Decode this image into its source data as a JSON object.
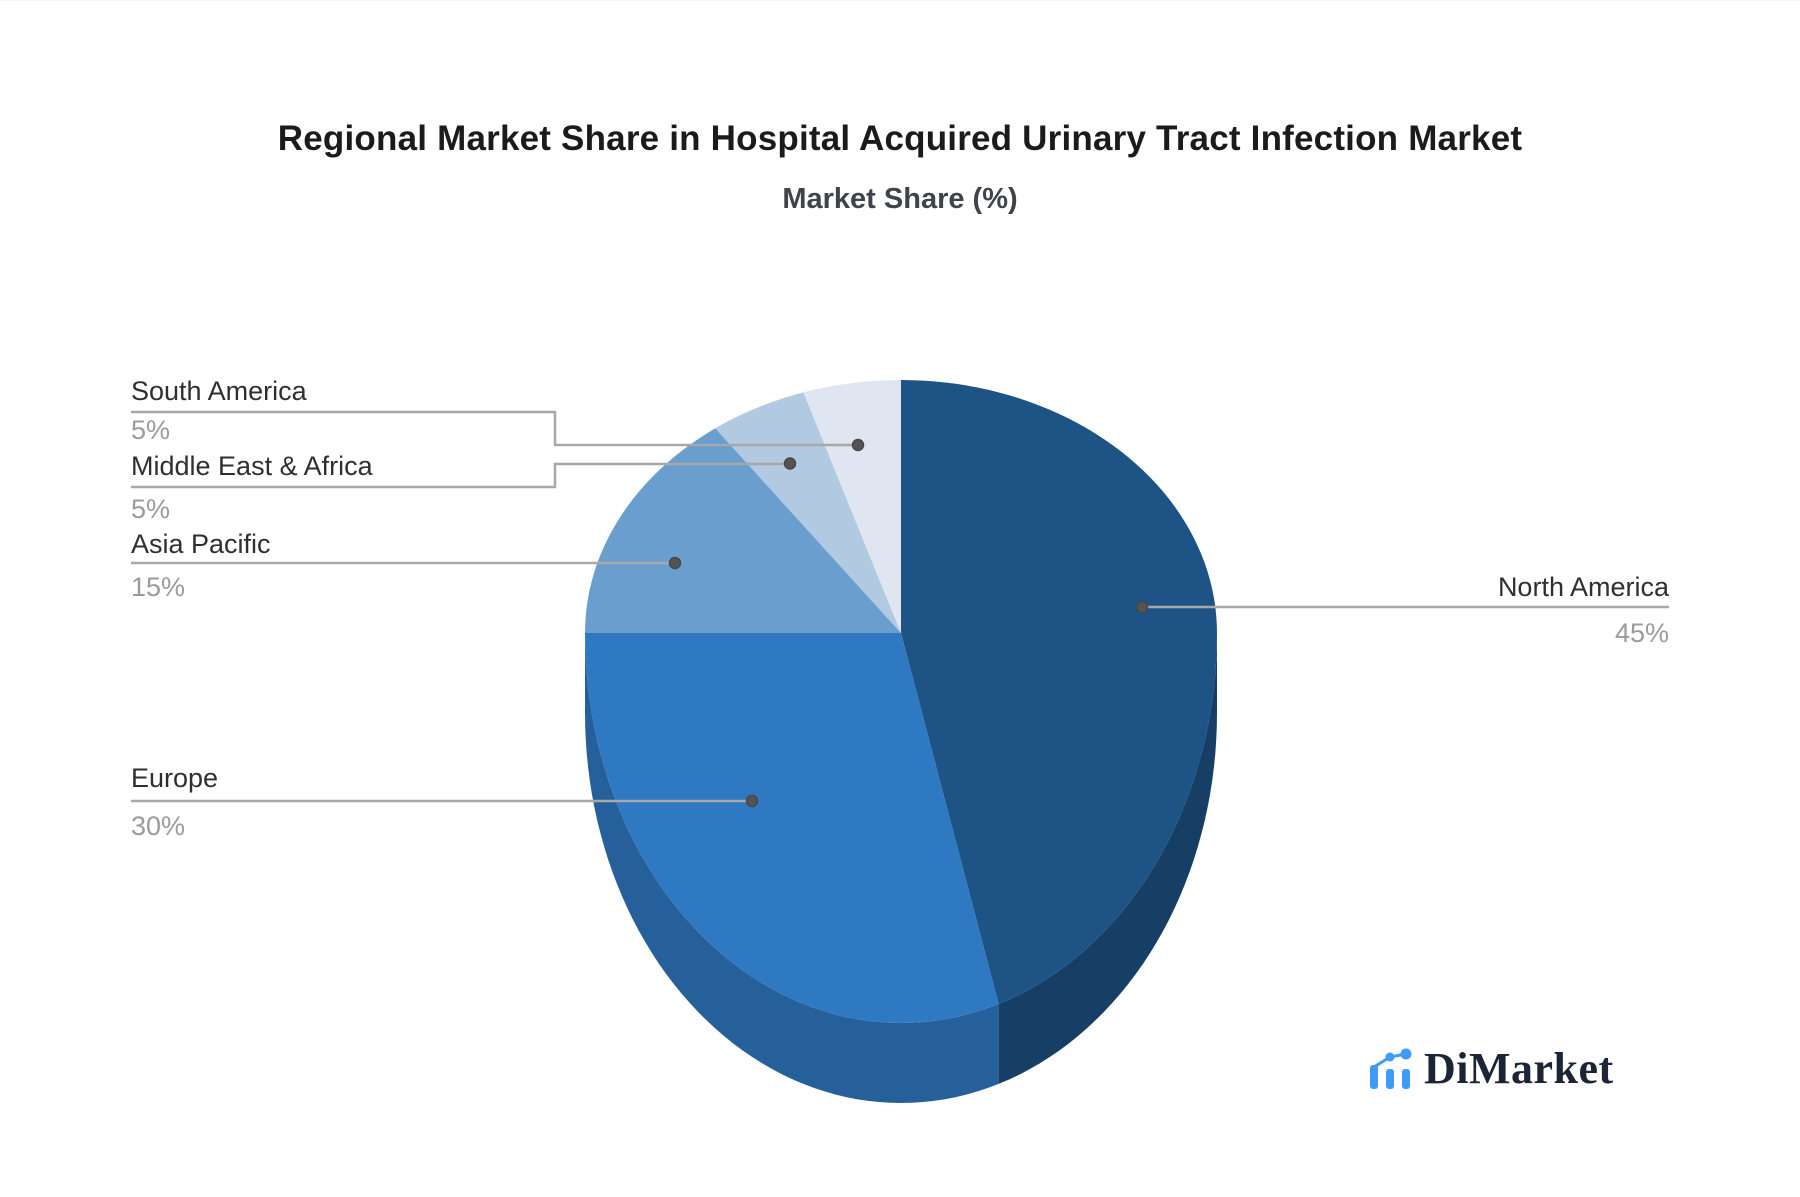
{
  "header": {
    "title": "Regional Market Share in Hospital Acquired Urinary Tract Infection Market",
    "subtitle": "Market Share (%)"
  },
  "chart_data": {
    "type": "pie",
    "style": "3d",
    "title": "Regional Market Share in Hospital Acquired Urinary Tract Infection Market",
    "subtitle": "Market Share (%)",
    "unit": "%",
    "start_angle_deg": 0,
    "direction": "clockwise",
    "legend_position": "callout-labels",
    "slices": [
      {
        "label": "North America",
        "value": 45,
        "pct_label": "45%",
        "color": "#1d5385",
        "side_color": "#173f66"
      },
      {
        "label": "Europe",
        "value": 30,
        "pct_label": "30%",
        "color": "#2e79c1",
        "side_color": "#26609a"
      },
      {
        "label": "Asia Pacific",
        "value": 15,
        "pct_label": "15%",
        "color": "#699ecf",
        "side_color": "#54799b"
      },
      {
        "label": "Middle East & Africa",
        "value": 5,
        "pct_label": "5%",
        "color": "#b2c9e2",
        "side_color": "#8ea0b5"
      },
      {
        "label": "South America",
        "value": 5,
        "pct_label": "5%",
        "color": "#dfe6f1",
        "side_color": "#b2b8c1"
      }
    ],
    "callout_style": {
      "line_color": "#a8a8a8",
      "dot_color": "#545456",
      "label_color": "#2f2f2f",
      "pct_color": "#9b9b9b"
    }
  },
  "logo": {
    "text": "DiMarket",
    "icon": "bar-line-chart-icon",
    "icon_color": "#3f9bf5",
    "text_color": "#1b2535"
  }
}
